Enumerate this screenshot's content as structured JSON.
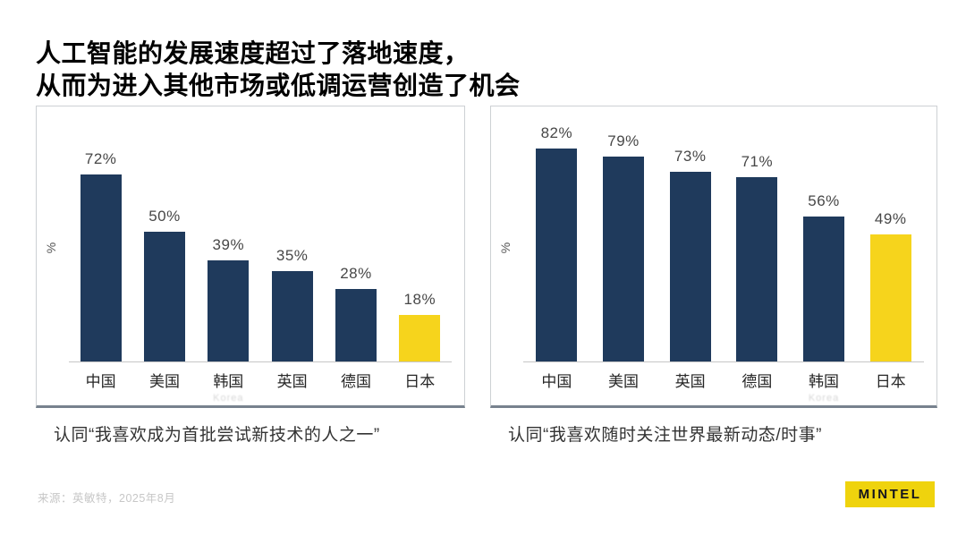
{
  "title": {
    "line1": "人工智能的发展速度超过了落地速度，",
    "line2": "从而为进入其他市场或低调运营创造了机会"
  },
  "colors": {
    "bar_navy": "#1F3A5C",
    "bar_yellow": "#F6D41C",
    "logo_bg": "#EFD30D",
    "logo_text": "#14141E"
  },
  "chart_data": [
    {
      "type": "bar",
      "title": "",
      "categories": [
        "中国",
        "美国",
        "韩国",
        "英国",
        "德国",
        "日本"
      ],
      "values": [
        72,
        50,
        39,
        35,
        28,
        18
      ],
      "value_labels": [
        "72%",
        "50%",
        "39%",
        "35%",
        "28%",
        "18%"
      ],
      "xlabel": "",
      "ylabel": "%",
      "ylim": [
        0,
        100
      ],
      "grid": false,
      "legend": "none",
      "highlight_category": "日本",
      "bar_color_default": "#1F3A5C",
      "bar_color_highlight": "#F6D41C",
      "caption": "认同“我喜欢成为首批尝试新技术的人之一”",
      "ghost_label": {
        "index": 2,
        "text": "Korea"
      }
    },
    {
      "type": "bar",
      "title": "",
      "categories": [
        "中国",
        "美国",
        "英国",
        "德国",
        "韩国",
        "日本"
      ],
      "values": [
        82,
        79,
        73,
        71,
        56,
        49
      ],
      "value_labels": [
        "82%",
        "79%",
        "73%",
        "71%",
        "56%",
        "49%"
      ],
      "xlabel": "",
      "ylabel": "%",
      "ylim": [
        0,
        100
      ],
      "grid": false,
      "legend": "none",
      "highlight_category": "日本",
      "bar_color_default": "#1F3A5C",
      "bar_color_highlight": "#F6D41C",
      "caption": "认同“我喜欢随时关注世界最新动态/时事”",
      "ghost_label": {
        "index": 4,
        "text": "Korea"
      }
    }
  ],
  "footer": {
    "source": "来源：英敏特，2025年8月",
    "logo": "MINTEL"
  }
}
